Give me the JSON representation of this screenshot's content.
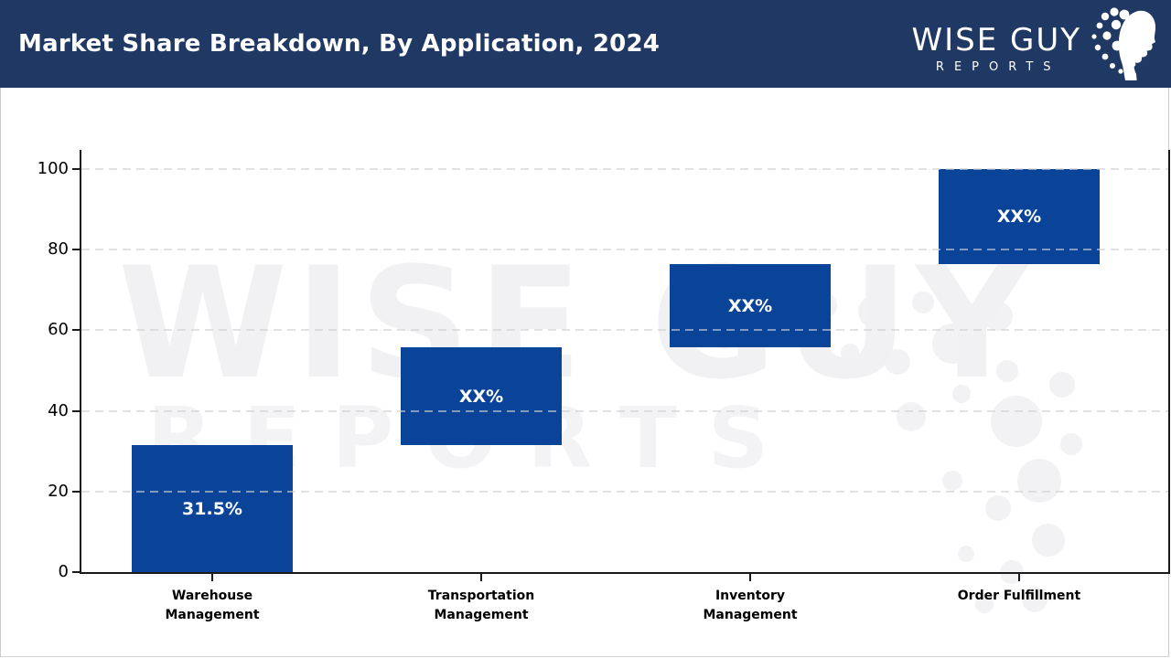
{
  "header": {
    "title": "Market Share Breakdown, By Application, 2024",
    "background_color": "#203864",
    "logo": {
      "line1": "WISE GUY",
      "line2": "REPORTS"
    }
  },
  "watermark": {
    "line1": "WISE GUY",
    "line2": "REPORTS"
  },
  "chart_data": {
    "type": "bar",
    "subtype": "waterfall",
    "title": "Market Share Breakdown, By Application, 2024",
    "categories": [
      "Warehouse Management",
      "Transportation Management",
      "Inventory Management",
      "Order Fulfillment"
    ],
    "category_lines": [
      [
        "Warehouse",
        "Management"
      ],
      [
        "Transportation",
        "Management"
      ],
      [
        "Inventory",
        "Management"
      ],
      [
        "Order Fulfillment"
      ]
    ],
    "segments": [
      {
        "category": "Warehouse Management",
        "start": 0,
        "end": 31.5,
        "label": "31.5%"
      },
      {
        "category": "Transportation Management",
        "start": 31.5,
        "end": 55.7,
        "label": "XX%"
      },
      {
        "category": "Inventory Management",
        "start": 55.7,
        "end": 76.4,
        "label": "XX%"
      },
      {
        "category": "Order Fulfillment",
        "start": 76.4,
        "end": 100,
        "label": "XX%"
      }
    ],
    "yticks": [
      "0",
      "20",
      "40",
      "60",
      "80",
      "100"
    ],
    "ylim": [
      0,
      104.8
    ],
    "xlabel": "",
    "ylabel": "",
    "grid": "dashed-horizontal",
    "legend": "none",
    "bar_color": "#0a4499",
    "bar_label_color": "#ffffff",
    "axis_color": "#1a1a1a"
  }
}
